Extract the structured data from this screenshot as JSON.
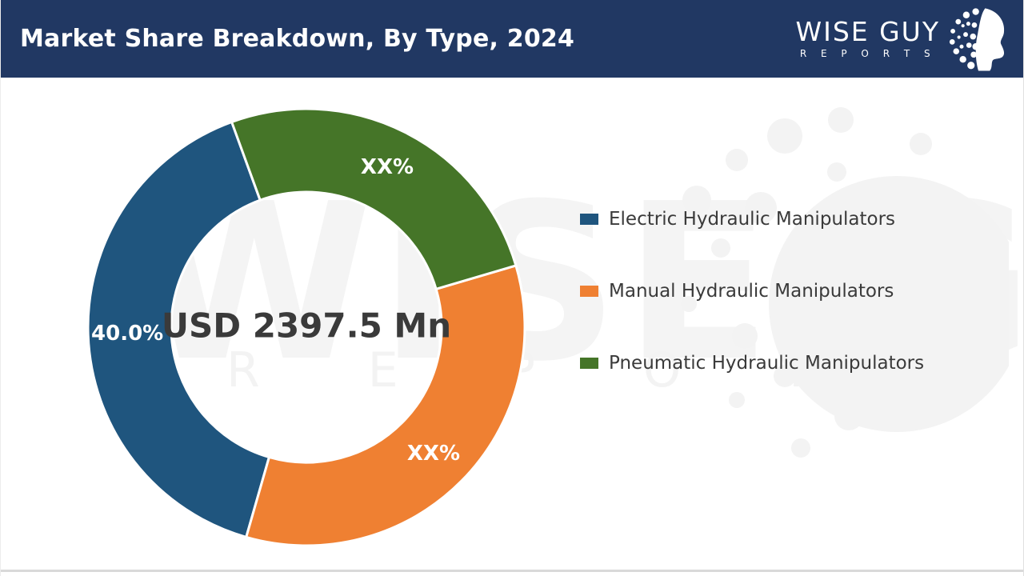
{
  "header": {
    "title": "Market Share Breakdown, By Type, 2024",
    "bg_color": "#213863",
    "logo": {
      "name": "WISE GUY REPORTS",
      "line1": "WISE GUY",
      "line2": "R E P O R T S"
    }
  },
  "chart_data": {
    "type": "pie",
    "subtype": "donut",
    "title": "Market Share Breakdown, By Type, 2024",
    "center_label": "USD 2397.5 Mn",
    "start_angle_deg": 110,
    "counterclockwise": true,
    "outer_radius_px": 273,
    "inner_radius_px": 169,
    "label_radius_px": 224,
    "legend_position": "right",
    "segments": [
      {
        "label": "Electric Hydraulic Manipulators",
        "value_pct": 40.0,
        "display_label": "40.0%",
        "color": "#1F557E"
      },
      {
        "label": "Manual Hydraulic Manipulators",
        "value_pct": 34.0,
        "display_label": "XX%",
        "color": "#EF8032"
      },
      {
        "label": "Pneumatic Hydraulic Manipulators",
        "value_pct": 26.0,
        "display_label": "XX%",
        "color": "#457528"
      }
    ]
  },
  "watermark": {
    "line1": "WISE GUY",
    "line2": "R E P O R T S"
  }
}
